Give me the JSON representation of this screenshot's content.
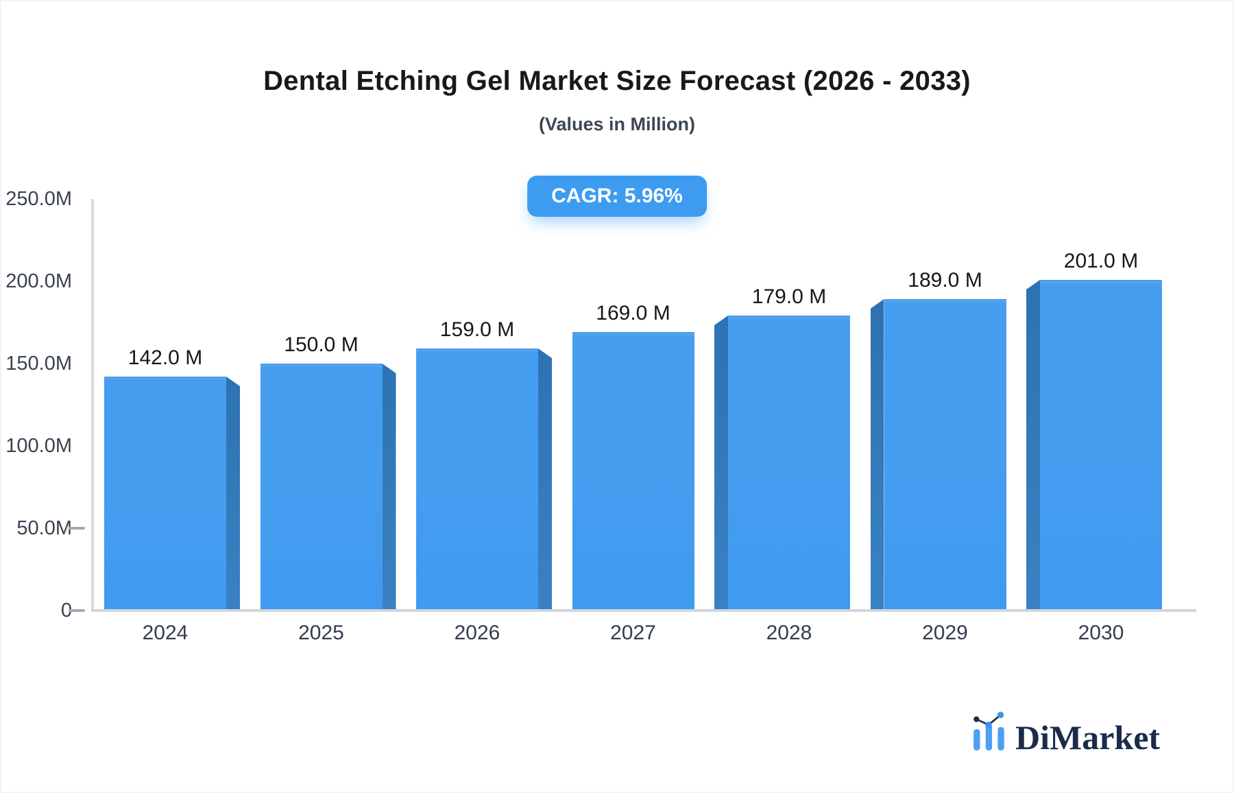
{
  "header": {
    "title": "Dental Etching Gel Market Size Forecast (2026 - 2033)",
    "subtitle": "(Values in Million)"
  },
  "badge": {
    "label": "CAGR: 5.96%",
    "bg_color": "#3d9cf0",
    "text_color": "#ffffff"
  },
  "chart_data": {
    "type": "bar",
    "title": "Dental Etching Gel Market Size Forecast (2026 - 2033)",
    "subtitle": "(Values in Million)",
    "cagr_percent": 5.96,
    "categories": [
      "2024",
      "2025",
      "2026",
      "2027",
      "2028",
      "2029",
      "2030"
    ],
    "values": [
      142,
      150,
      159,
      169,
      179,
      189,
      201
    ],
    "value_labels": [
      "142.0 M",
      "150.0 M",
      "159.0 M",
      "169.0 M",
      "179.0 M",
      "189.0 M",
      "201.0 M"
    ],
    "unit": "Million",
    "xlabel": "",
    "ylabel": "",
    "ylim": [
      0,
      250
    ],
    "yticks": [
      {
        "value": 250,
        "label": "250.0M",
        "dash": false
      },
      {
        "value": 200,
        "label": "200.0M",
        "dash": false
      },
      {
        "value": 150,
        "label": "150.0M",
        "dash": false
      },
      {
        "value": 100,
        "label": "100.0M",
        "dash": false
      },
      {
        "value": 50,
        "label": "50.0M",
        "dash": true
      },
      {
        "value": 0,
        "label": "0",
        "dash": true
      }
    ],
    "grid": false,
    "legend": false,
    "bar_style": {
      "face_color_top": "#58a8f0",
      "face_color_bottom": "#3f9af0",
      "side_color": "#2d72b3",
      "effect": "3d-extruded, side face mirrors away from center bar"
    }
  },
  "branding": {
    "logo_text": "DiMarket",
    "logo_icon": "mini-bar-line-chart-icon",
    "logo_color": "#1c2b4b",
    "logo_bar_color": "#4aa1f3"
  }
}
